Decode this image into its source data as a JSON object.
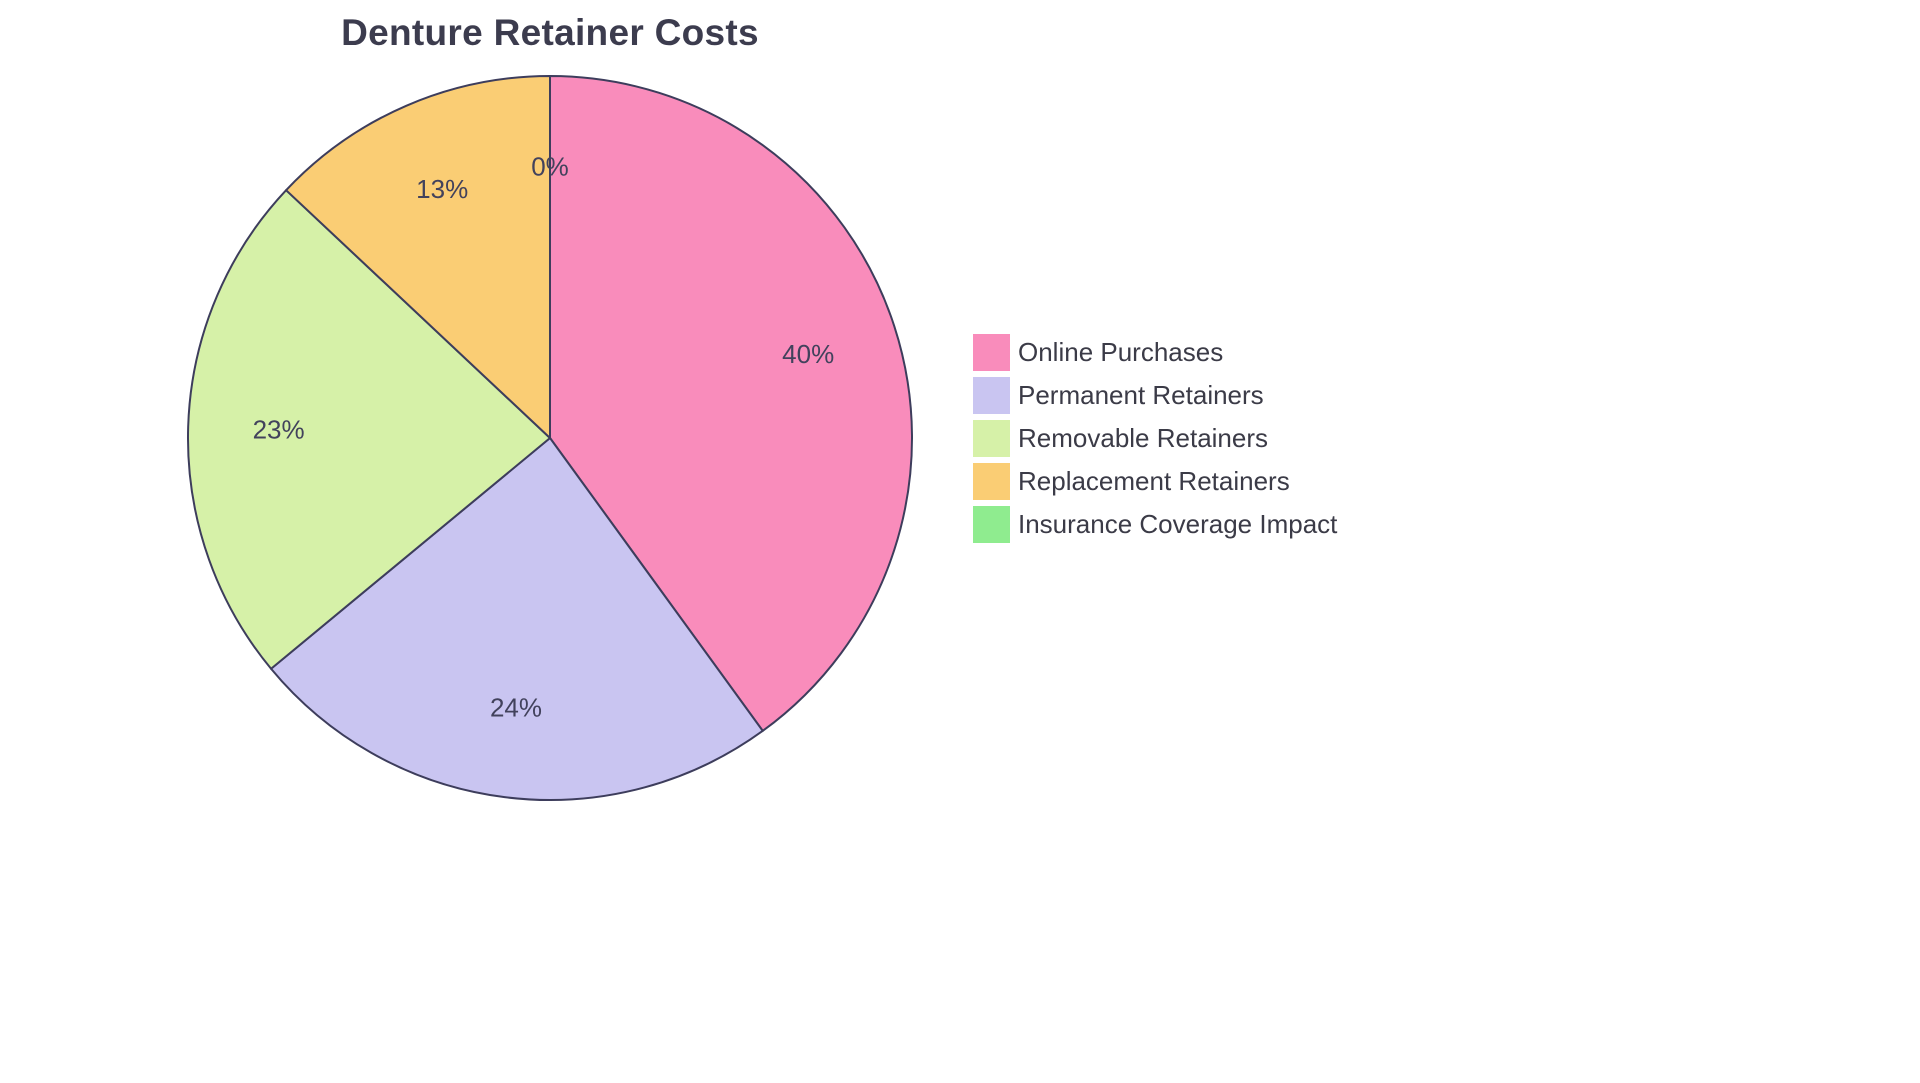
{
  "title": "Denture Retainer Costs",
  "chart_data": {
    "type": "pie",
    "title": "Denture Retainer Costs",
    "categories": [
      "Online Purchases",
      "Permanent Retainers",
      "Removable Retainers",
      "Replacement Retainers",
      "Insurance Coverage Impact"
    ],
    "values": [
      40,
      24,
      23,
      13,
      0
    ],
    "labels": [
      "40%",
      "24%",
      "23%",
      "13%",
      "0%"
    ],
    "colors": [
      "#F98CBB",
      "#C9C5F1",
      "#D6F1A8",
      "#FACD74",
      "#8FEC8F"
    ],
    "stroke_color": "#3D3D5C",
    "start_angle": "top",
    "direction": "clockwise",
    "legend_position": "right",
    "background": "#FFFFFF"
  }
}
